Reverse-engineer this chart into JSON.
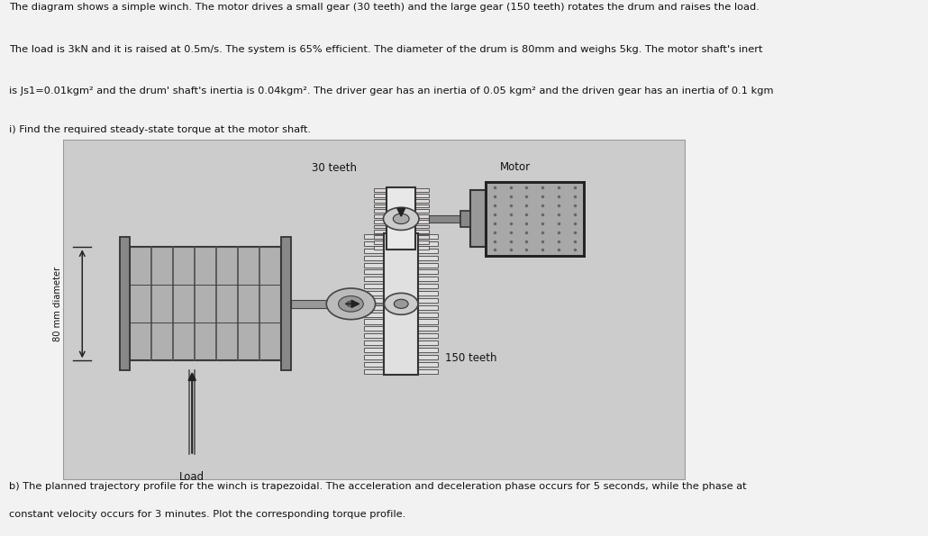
{
  "background_color": "#f2f2f2",
  "diagram_bg": "#cccccc",
  "title_lines": [
    "The diagram shows a simple winch. The motor drives a small gear (30 teeth) and the large gear (150 teeth) rotates the drum and raises the load.",
    "The load is 3kN and it is raised at 0.5m/s. The system is 65% efficient. The diameter of the drum is 80mm and weighs 5kg. The motor shaft's inert",
    "is Js1=0.01kgm² and the drum' shaft's inertia is 0.04kgm². The driver gear has an inertia of 0.05 kgm² and the driven gear has an inertia of 0.1 kgm"
  ],
  "question_i": "i) Find the required steady-state torque at the motor shaft.",
  "question_b_lines": [
    "b) The planned trajectory profile for the winch is trapezoidal. The acceleration and deceleration phase occurs for 5 seconds, while the phase at",
    "constant velocity occurs for 3 minutes. Plot the corresponding torque profile."
  ],
  "label_30teeth": "30 teeth",
  "label_150teeth": "150 teeth",
  "label_motor": "Motor",
  "label_diameter": "80 mm diameter",
  "label_load": "Load",
  "text_color": "#111111",
  "font_size_body": 8.2,
  "font_size_label": 8.0
}
